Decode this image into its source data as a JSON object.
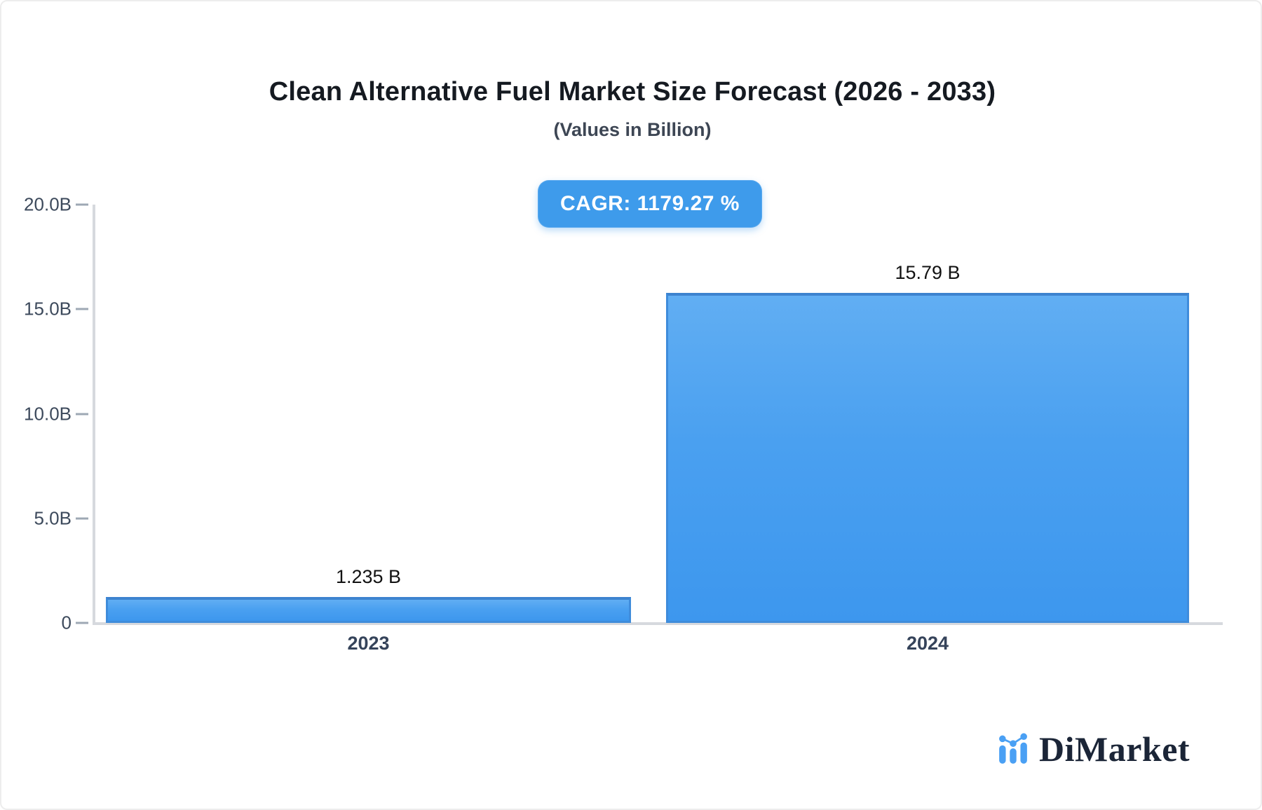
{
  "page": {
    "background": "#ffffff",
    "border_color": "#ededed"
  },
  "chart_data": {
    "type": "bar",
    "title": "Clean Alternative Fuel Market Size Forecast (2026 - 2033)",
    "subtitle": "(Values in Billion)",
    "categories": [
      "2023",
      "2024"
    ],
    "values": [
      1.235,
      15.79
    ],
    "bar_labels": [
      "1.235 B",
      "15.79 B"
    ],
    "unit": "B",
    "ylim": [
      0,
      20
    ],
    "y_ticks": [
      {
        "label": "20.0B",
        "value": 20
      },
      {
        "label": "15.0B",
        "value": 15
      },
      {
        "label": "10.0B",
        "value": 10
      },
      {
        "label": "5.0B",
        "value": 5
      },
      {
        "label": "0",
        "value": 0
      }
    ],
    "grid": false,
    "legend": null,
    "bar_color_top": "#61AEF3",
    "bar_color_bottom": "#3D97EE",
    "bar_border_color": "#3F8CDB",
    "axis_color": "#D6D9DE",
    "tick_color": "#9EA8B4"
  },
  "badge": {
    "label": "CAGR: 1179.27 %",
    "background": "#3E9BEB",
    "text_color": "#FFFFFF"
  },
  "logo": {
    "text": "DiMarket",
    "icon": "bar-chart-logo-icon",
    "icon_color": "#4AA0F4",
    "text_color": "#1B2537"
  }
}
